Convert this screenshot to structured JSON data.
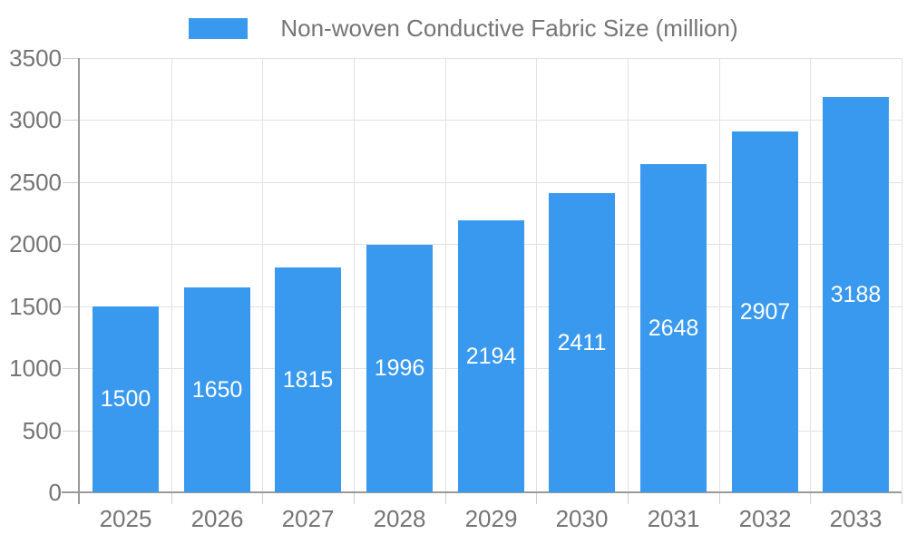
{
  "legend": {
    "label": "Non-woven Conductive Fabric Size (million)"
  },
  "colors": {
    "bar": "#3999EE",
    "grid": "#E2E2E2",
    "tick": "#CFCFCF",
    "axis": "#9A9A9A",
    "text": "#757575",
    "value_label": "#FFFFFF",
    "background": "#FFFFFF"
  },
  "chart_data": {
    "type": "bar",
    "title": "Non-woven Conductive Fabric Size (million)",
    "categories": [
      "2025",
      "2026",
      "2027",
      "2028",
      "2029",
      "2030",
      "2031",
      "2032",
      "2033"
    ],
    "series": [
      {
        "name": "Non-woven Conductive Fabric Size (million)",
        "values": [
          1500,
          1650,
          1815,
          1996,
          2194,
          2411,
          2648,
          2907,
          3188
        ]
      }
    ],
    "xlabel": "",
    "ylabel": "",
    "ylim": [
      0,
      3500
    ],
    "ytick_step": 500,
    "ytick_labels": [
      "0",
      "500",
      "1000",
      "1500",
      "2000",
      "2500",
      "3000",
      "3500"
    ],
    "grid": true,
    "legend_position": "top",
    "value_labels": "inside-center"
  }
}
